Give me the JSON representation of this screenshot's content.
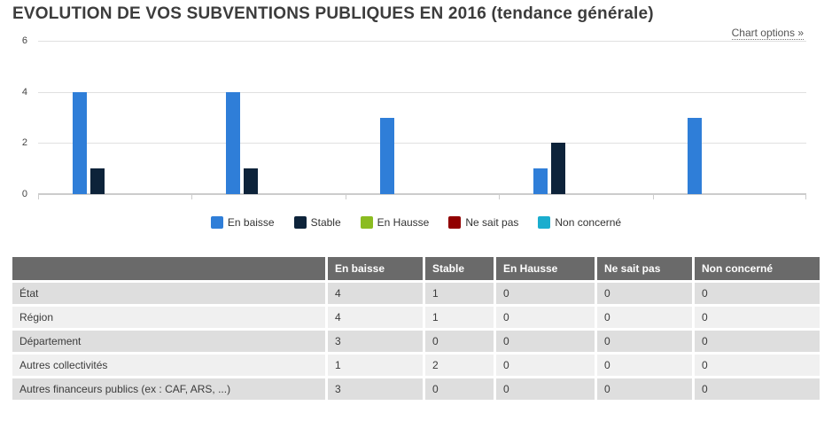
{
  "page": {
    "title": "EVOLUTION DE VOS SUBVENTIONS PUBLIQUES EN 2016 (tendance générale)",
    "chart_options_label": "Chart options »"
  },
  "chart_data": {
    "type": "bar",
    "title": "EVOLUTION DE VOS SUBVENTIONS PUBLIQUES EN 2016 (tendance générale)",
    "categories": [
      "État",
      "Région",
      "Département",
      "Autres collectivités",
      "Autres financeurs publics (ex : CAF, ARS, ...)"
    ],
    "series": [
      {
        "name": "En baisse",
        "color": "#2f7ed8",
        "values": [
          4,
          4,
          3,
          1,
          3
        ]
      },
      {
        "name": "Stable",
        "color": "#0d233a",
        "values": [
          1,
          1,
          0,
          2,
          0
        ]
      },
      {
        "name": "En Hausse",
        "color": "#8bbc21",
        "values": [
          0,
          0,
          0,
          0,
          0
        ]
      },
      {
        "name": "Ne sait pas",
        "color": "#910000",
        "values": [
          0,
          0,
          0,
          0,
          0
        ]
      },
      {
        "name": "Non concerné",
        "color": "#1aadce",
        "values": [
          0,
          0,
          0,
          0,
          0
        ]
      }
    ],
    "ylim": [
      0,
      6
    ],
    "yticks": [
      0,
      2,
      4,
      6
    ],
    "grid": true,
    "legend_position": "bottom",
    "x_axis_category_labels_visible": false
  },
  "table": {
    "columns": [
      "",
      "En baisse",
      "Stable",
      "En Hausse",
      "Ne sait pas",
      "Non concerné"
    ],
    "rows": [
      {
        "label": "État",
        "values": [
          "4",
          "1",
          "0",
          "0",
          "0"
        ]
      },
      {
        "label": "Région",
        "values": [
          "4",
          "1",
          "0",
          "0",
          "0"
        ]
      },
      {
        "label": "Département",
        "values": [
          "3",
          "0",
          "0",
          "0",
          "0"
        ]
      },
      {
        "label": "Autres collectivités",
        "values": [
          "1",
          "2",
          "0",
          "0",
          "0"
        ]
      },
      {
        "label": "Autres financeurs publics (ex : CAF, ARS, ...)",
        "values": [
          "3",
          "0",
          "0",
          "0",
          "0"
        ]
      }
    ]
  },
  "colors": {
    "title_text": "#3c3c3c",
    "link_text": "#555555",
    "gridline": "#e0e0e0",
    "axis_line": "#cccccc",
    "table_header_bg": "#6a6a6a",
    "table_row_odd": "#dedede",
    "table_row_even": "#f0f0f0"
  }
}
